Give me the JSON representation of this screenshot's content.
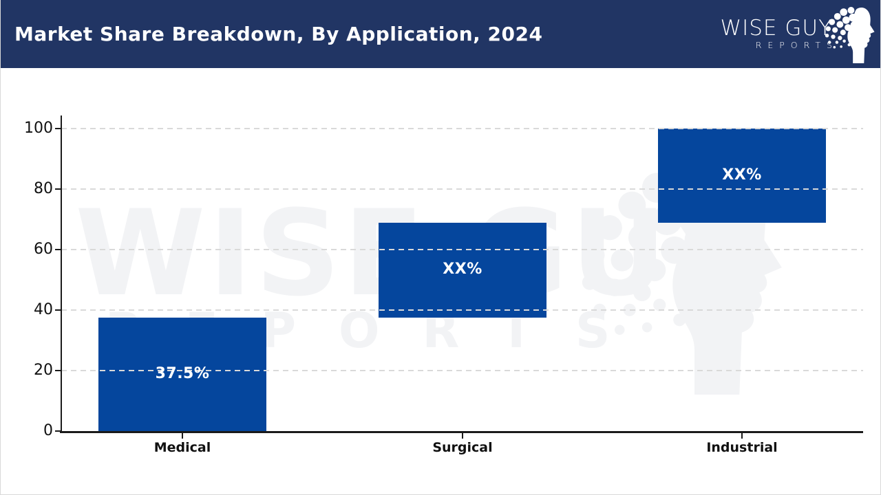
{
  "header": {
    "title": "Market Share Breakdown, By Application, 2024",
    "logo": {
      "line1": "WISE GUY",
      "line2": "REPORTS"
    }
  },
  "watermark": {
    "line1": "WISE GUY",
    "line2": "REPORTS"
  },
  "chart_data": {
    "type": "bar",
    "variant": "floating-waterfall",
    "title": "Market Share Breakdown, By Application, 2024",
    "categories": [
      "Medical",
      "Surgical",
      "Industrial"
    ],
    "segments": [
      {
        "category": "Medical",
        "start": 0,
        "end": 37.5,
        "label": "37.5%"
      },
      {
        "category": "Surgical",
        "start": 37.5,
        "end": 68.8,
        "label": "XX%"
      },
      {
        "category": "Industrial",
        "start": 68.8,
        "end": 100,
        "label": "XX%"
      }
    ],
    "yticks": [
      0,
      20,
      40,
      60,
      80,
      100
    ],
    "ylim": [
      0,
      100
    ],
    "xlabel": "",
    "ylabel": "",
    "legend": "none",
    "grid": "horizontal dashed, drawn above bars",
    "bar_color": "#05469d",
    "bar_label_color": "#ffffff",
    "axis_color": "#1a1a1a",
    "grid_color": "#d9d9d9",
    "header_color": "#213564",
    "watermark_color": "#f2f3f5"
  }
}
